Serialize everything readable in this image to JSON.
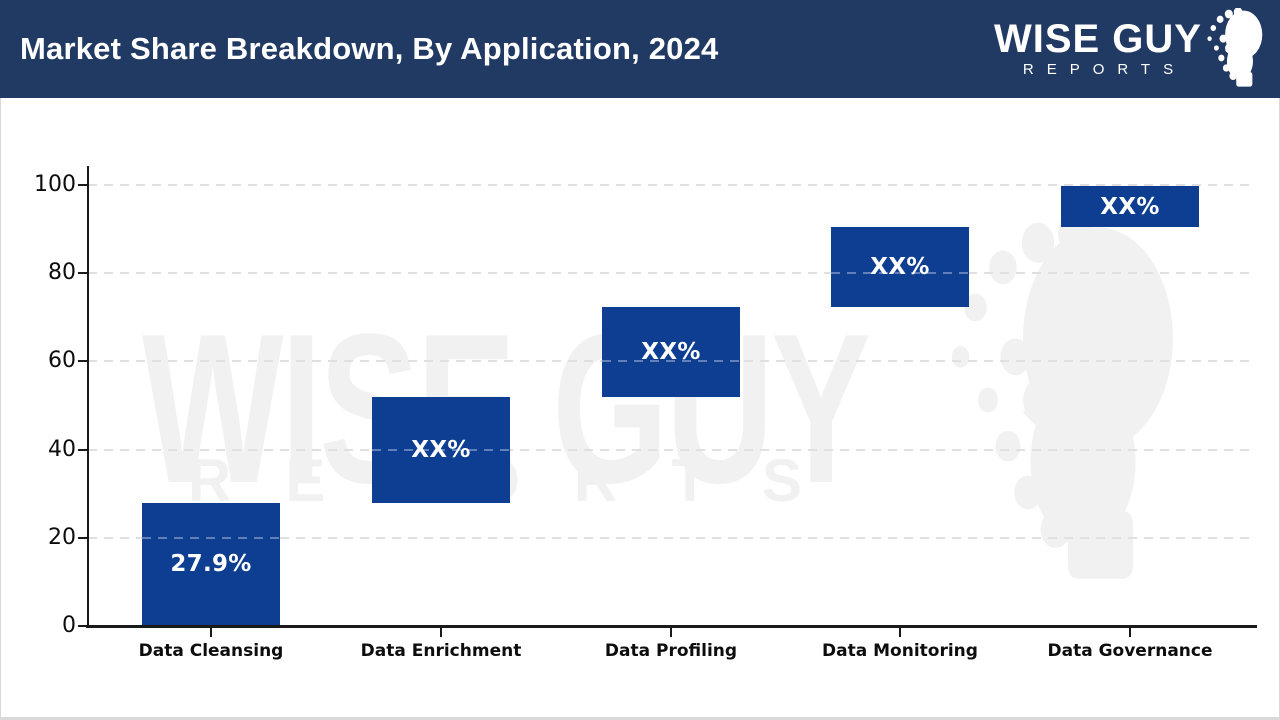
{
  "header": {
    "title": "Market Share Breakdown, By Application, 2024",
    "bg_color": "#213a64",
    "logo": {
      "line1": "WISE GUY",
      "line2": "REPORTS"
    }
  },
  "watermark": {
    "line1": "WISE GUY",
    "line2": "REPORTS"
  },
  "chart_data": {
    "type": "bar",
    "subtype": "waterfall",
    "title": "Market Share Breakdown, By Application, 2024",
    "categories": [
      "Data Cleansing",
      "Data Enrichment",
      "Data Profiling",
      "Data Monitoring",
      "Data Governance"
    ],
    "segments": [
      {
        "start": 0,
        "end": 27.9,
        "label": "27.9%"
      },
      {
        "start": 27.9,
        "end": 51.9,
        "label": "XX%"
      },
      {
        "start": 51.9,
        "end": 72.3,
        "label": "XX%"
      },
      {
        "start": 72.3,
        "end": 90.4,
        "label": "XX%"
      },
      {
        "start": 90.4,
        "end": 99.7,
        "label": "XX%"
      }
    ],
    "values": [
      27.9,
      24.0,
      20.4,
      18.1,
      9.3
    ],
    "displayed_bar_labels": [
      "27.9%",
      "XX%",
      "XX%",
      "XX%",
      "XX%"
    ],
    "yticks": [
      0,
      20,
      40,
      60,
      80,
      100
    ],
    "ylim": [
      0,
      104
    ],
    "xlabel": "",
    "ylabel": "",
    "bar_color": "#0d3e92",
    "grid": "horizontal-dashed",
    "grid_color": "#e0e0e0",
    "legend": "none"
  }
}
